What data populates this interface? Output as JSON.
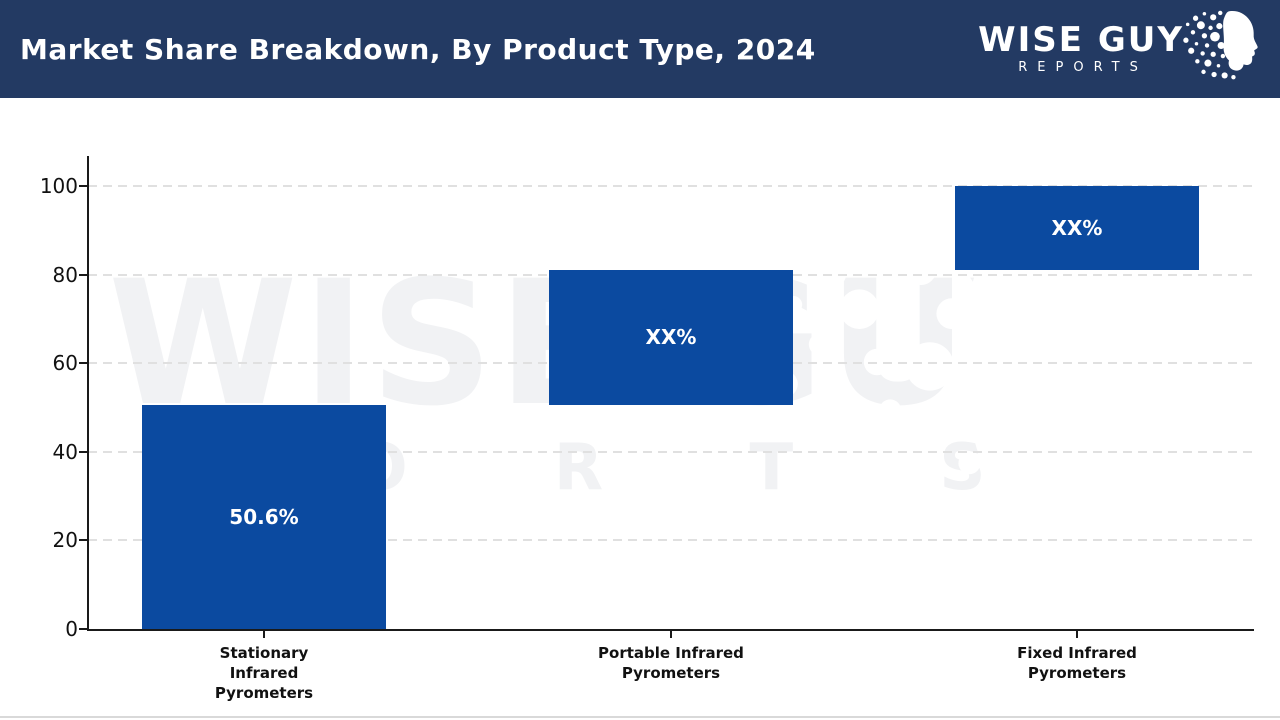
{
  "header": {
    "title": "Market Share Breakdown, By Product Type, 2024",
    "logo": {
      "brand_top": "WISE GUY",
      "brand_bottom": "REPORTS"
    }
  },
  "watermark": {
    "line1": "WISE GUY",
    "line2": "P O R T S"
  },
  "colors": {
    "header_bg": "#233a63",
    "bar": "#0b4aa0",
    "bar_label": "#ffffff",
    "grid": "#e0e0e0",
    "axis": "#1a1a1a",
    "watermark": "#f1f2f4"
  },
  "chart_data": {
    "type": "bar",
    "subtype": "stacked-waterfall-percent",
    "title": "Market Share Breakdown, By Product Type, 2024",
    "categories": [
      "Stationary Infrared Pyrometers",
      "Portable Infrared Pyrometers",
      "Fixed Infrared Pyrometers"
    ],
    "category_label_lines": [
      [
        "Stationary",
        "Infrared",
        "Pyrometers"
      ],
      [
        "Portable Infrared",
        "Pyrometers"
      ],
      [
        "Fixed Infrared",
        "Pyrometers"
      ]
    ],
    "segments": [
      {
        "category": "Stationary Infrared Pyrometers",
        "start": 0,
        "end": 50.6,
        "value": 50.6,
        "label": "50.6%"
      },
      {
        "category": "Portable Infrared Pyrometers",
        "start": 50.6,
        "end": 81.1,
        "value": 30.5,
        "label": "XX%"
      },
      {
        "category": "Fixed Infrared Pyrometers",
        "start": 81.1,
        "end": 100,
        "value": 18.9,
        "label": "XX%"
      }
    ],
    "yticks": [
      0,
      20,
      40,
      60,
      80,
      100
    ],
    "ylim": [
      0,
      100
    ],
    "xlabel": "",
    "ylabel": "",
    "grid": "horizontal-dashed",
    "legend": "none"
  }
}
